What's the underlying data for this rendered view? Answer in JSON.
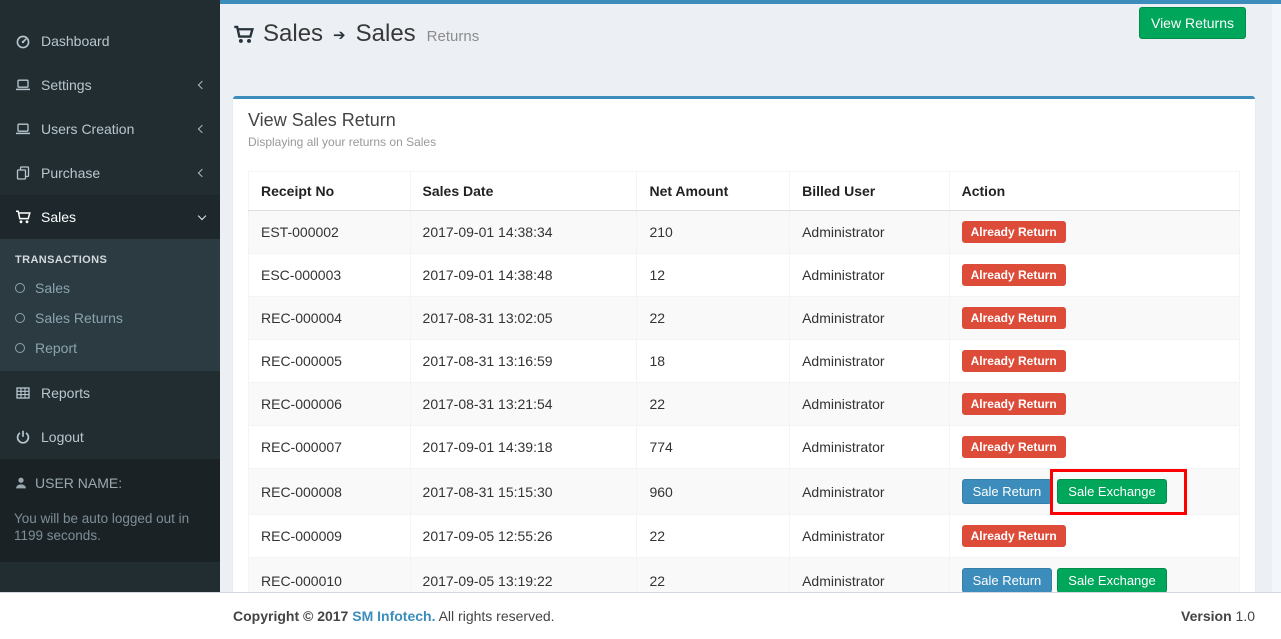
{
  "sidebar": {
    "items": [
      {
        "label": "Dashboard",
        "icon": "dashboard-icon"
      },
      {
        "label": "Settings",
        "icon": "laptop-icon",
        "chevron": "left"
      },
      {
        "label": "Users Creation",
        "icon": "laptop-icon",
        "chevron": "left"
      },
      {
        "label": "Purchase",
        "icon": "copy-icon",
        "chevron": "left"
      },
      {
        "label": "Sales",
        "icon": "cart-icon",
        "chevron": "down",
        "active": true
      }
    ],
    "submenu_header": "TRANSACTIONS",
    "submenu_items": [
      {
        "label": "Sales"
      },
      {
        "label": "Sales Returns"
      },
      {
        "label": "Report"
      }
    ],
    "bottom_items": [
      {
        "label": "Reports",
        "icon": "table-icon"
      },
      {
        "label": "Logout",
        "icon": "power-icon"
      }
    ],
    "user_panel": {
      "label": "USER NAME:",
      "note_line1": "You will be auto logged out in",
      "note_line2": "1199 seconds."
    }
  },
  "header": {
    "title_primary": "Sales",
    "arrow": "➔",
    "title_secondary": "Sales",
    "title_small": "Returns",
    "view_returns_label": "View Returns"
  },
  "box": {
    "title": "View Sales Return",
    "subtitle": "Displaying all your returns on Sales"
  },
  "table": {
    "columns": [
      "Receipt No",
      "Sales Date",
      "Net Amount",
      "Billed User",
      "Action"
    ],
    "rows": [
      {
        "receipt_no": "EST-000002",
        "sales_date": "2017-09-01 14:38:34",
        "net_amount": "210",
        "billed_user": "Administrator",
        "actions": [
          {
            "type": "already-return"
          }
        ]
      },
      {
        "receipt_no": "ESC-000003",
        "sales_date": "2017-09-01 14:38:48",
        "net_amount": "12",
        "billed_user": "Administrator",
        "actions": [
          {
            "type": "already-return"
          }
        ]
      },
      {
        "receipt_no": "REC-000004",
        "sales_date": "2017-08-31 13:02:05",
        "net_amount": "22",
        "billed_user": "Administrator",
        "actions": [
          {
            "type": "already-return"
          }
        ]
      },
      {
        "receipt_no": "REC-000005",
        "sales_date": "2017-08-31 13:16:59",
        "net_amount": "18",
        "billed_user": "Administrator",
        "actions": [
          {
            "type": "already-return"
          }
        ]
      },
      {
        "receipt_no": "REC-000006",
        "sales_date": "2017-08-31 13:21:54",
        "net_amount": "22",
        "billed_user": "Administrator",
        "actions": [
          {
            "type": "already-return"
          }
        ]
      },
      {
        "receipt_no": "REC-000007",
        "sales_date": "2017-09-01 14:39:18",
        "net_amount": "774",
        "billed_user": "Administrator",
        "actions": [
          {
            "type": "already-return"
          }
        ]
      },
      {
        "receipt_no": "REC-000008",
        "sales_date": "2017-08-31 15:15:30",
        "net_amount": "960",
        "billed_user": "Administrator",
        "actions": [
          {
            "type": "sale-return"
          },
          {
            "type": "sale-exchange",
            "highlighted": true
          }
        ]
      },
      {
        "receipt_no": "REC-000009",
        "sales_date": "2017-09-05 12:55:26",
        "net_amount": "22",
        "billed_user": "Administrator",
        "actions": [
          {
            "type": "already-return"
          }
        ]
      },
      {
        "receipt_no": "REC-000010",
        "sales_date": "2017-09-05 13:19:22",
        "net_amount": "22",
        "billed_user": "Administrator",
        "actions": [
          {
            "type": "sale-return"
          },
          {
            "type": "sale-exchange"
          }
        ]
      }
    ]
  },
  "action_labels": {
    "already-return": "Already Return",
    "sale-return": "Sale Return",
    "sale-exchange": "Sale Exchange"
  },
  "footer": {
    "copyright_prefix": "Copyright © 2017",
    "company": "SM Infotech.",
    "suffix": "All rights reserved.",
    "version_label": "Version",
    "version_value": "1.0"
  },
  "colors": {
    "accent_blue": "#3c8dbc",
    "success_green": "#00a65a",
    "danger_red": "#dd4b39",
    "highlight_red": "#ff0000",
    "sidebar_bg": "#222d32",
    "content_bg": "#ecf0f5"
  }
}
